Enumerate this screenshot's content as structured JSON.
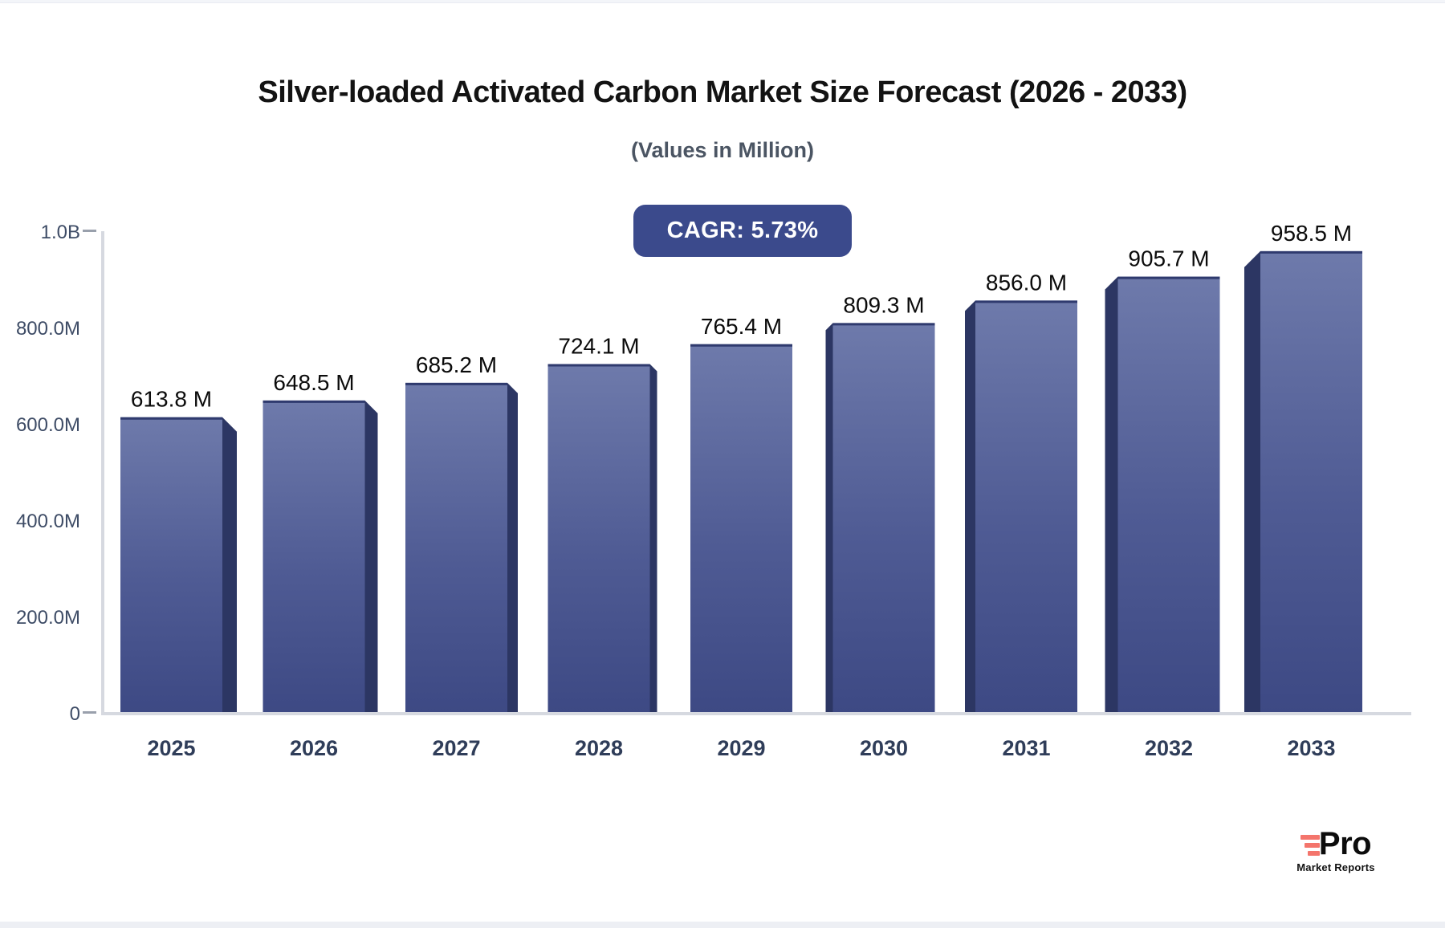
{
  "page": {
    "title": "Silver-loaded Activated Carbon Market Size Forecast (2026 - 2033)",
    "subtitle": "(Values in Million)",
    "cagr_label": "CAGR: 5.73%"
  },
  "chart_data": {
    "type": "bar",
    "title": "Silver-loaded Activated Carbon Market Size Forecast (2026 - 2033)",
    "subtitle": "(Values in Million)",
    "cagr": "5.73%",
    "categories": [
      "2025",
      "2026",
      "2027",
      "2028",
      "2029",
      "2030",
      "2031",
      "2032",
      "2033"
    ],
    "values": [
      613.8,
      648.5,
      685.2,
      724.1,
      765.4,
      809.3,
      856.0,
      905.7,
      958.5
    ],
    "unit": "M",
    "value_labels": [
      "613.8 M",
      "648.5 M",
      "685.2 M",
      "724.1 M",
      "765.4 M",
      "809.3 M",
      "856.0 M",
      "905.7 M",
      "958.5 M"
    ],
    "y_tick_labels": [
      "1.0B",
      "800.0M",
      "600.0M",
      "400.0M",
      "200.0M",
      "0"
    ],
    "y_tick_values": [
      1000,
      800,
      600,
      400,
      200,
      0
    ],
    "ylim": [
      0,
      1000
    ],
    "grid": false,
    "legend": false,
    "bar_style": "3d-perspective",
    "colors": {
      "bar_face_top": "#6e7aab",
      "bar_face_mid": "#4f5b94",
      "bar_face_bottom": "#3d4984",
      "bar_side": "#2c3663",
      "bar_top_edge": "#2f3a6e",
      "axis": "#d6d9e0",
      "tick": "#99a0ac",
      "y_label": "#3e4c66",
      "x_label": "#2f3d59",
      "value_label": "#0b0b0b",
      "badge_bg": "#3b4a8c",
      "badge_text": "#ffffff"
    }
  },
  "logo": {
    "name": "Pro",
    "subtext": "Market Reports",
    "accent": "#f4756c"
  }
}
